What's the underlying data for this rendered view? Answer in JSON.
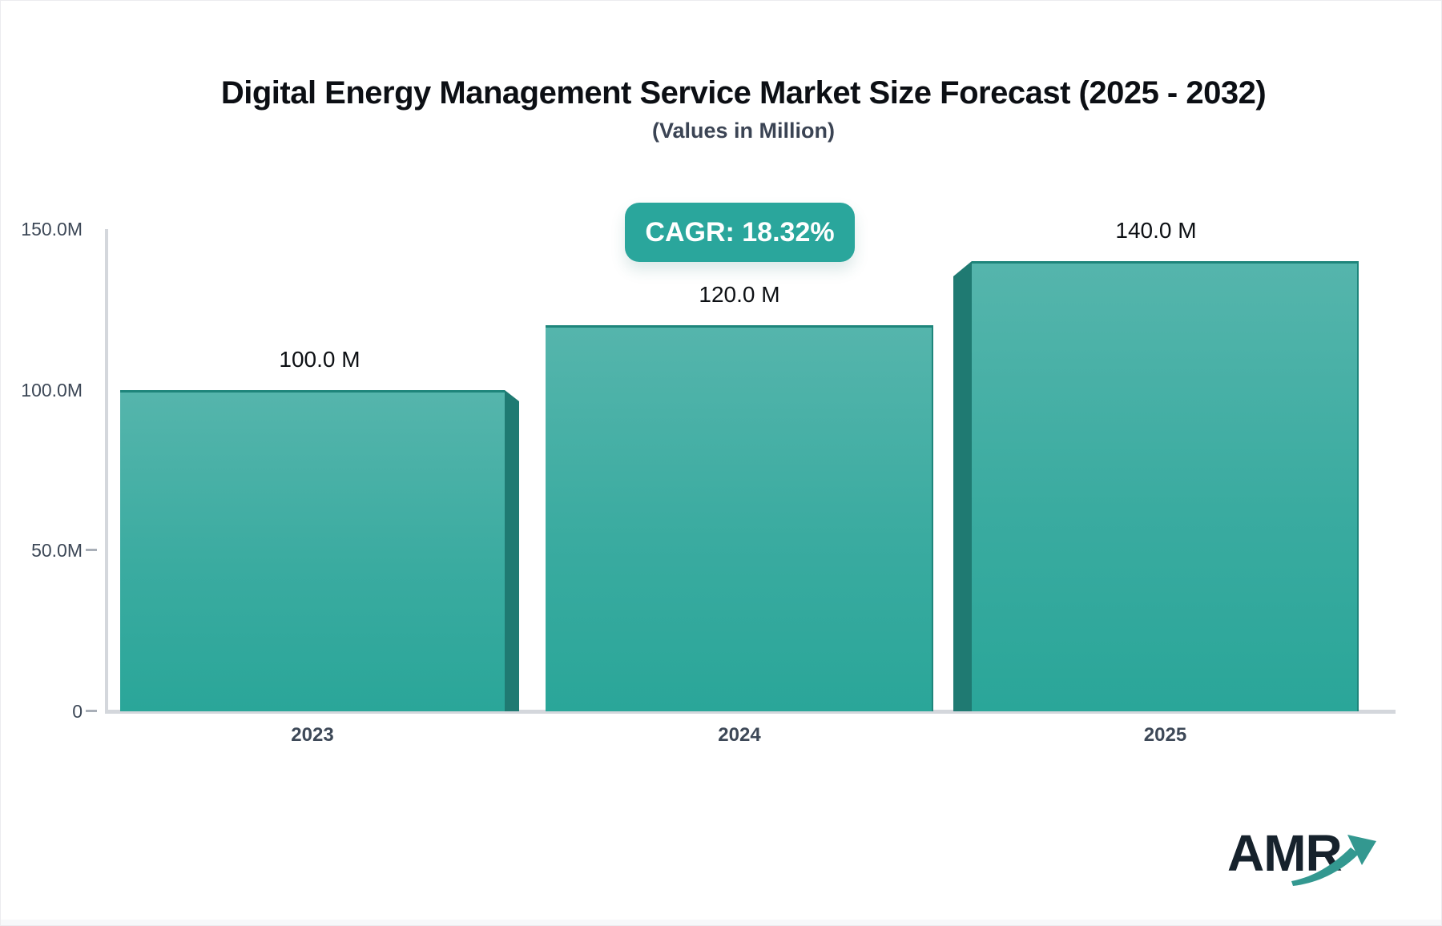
{
  "page": {
    "title": "Digital Energy Management Service Market Size Forecast (2025 - 2032)",
    "subtitle": "(Values in Million)",
    "cagr_badge": "CAGR: 18.32%"
  },
  "chart_data": {
    "type": "bar",
    "title": "Digital Energy Management Service Market Size Forecast (2025 - 2032)",
    "subtitle": "(Values in Million)",
    "unit": "Million",
    "cagr_percent": 18.32,
    "categories": [
      "2023",
      "2024",
      "2025"
    ],
    "values": [
      100,
      120,
      140
    ],
    "value_labels": [
      "100.0 M",
      "120.0 M",
      "140.0 M"
    ],
    "yticks": [
      {
        "label": "150.0M",
        "value": 150
      },
      {
        "label": "100.0M",
        "value": 100
      },
      {
        "label": "50.0M",
        "value": 50
      },
      {
        "label": "0",
        "value": 0
      }
    ],
    "ylim": [
      0,
      150
    ],
    "xlabel": "",
    "ylabel": "",
    "legend": "none",
    "grid": "off",
    "bar_color_top": "#55B5AC",
    "bar_color_bottom": "#2AA699",
    "bar_side_color": "#1F7A72",
    "accent_color": "#2AA69C"
  },
  "logo": {
    "text": "AMR"
  }
}
